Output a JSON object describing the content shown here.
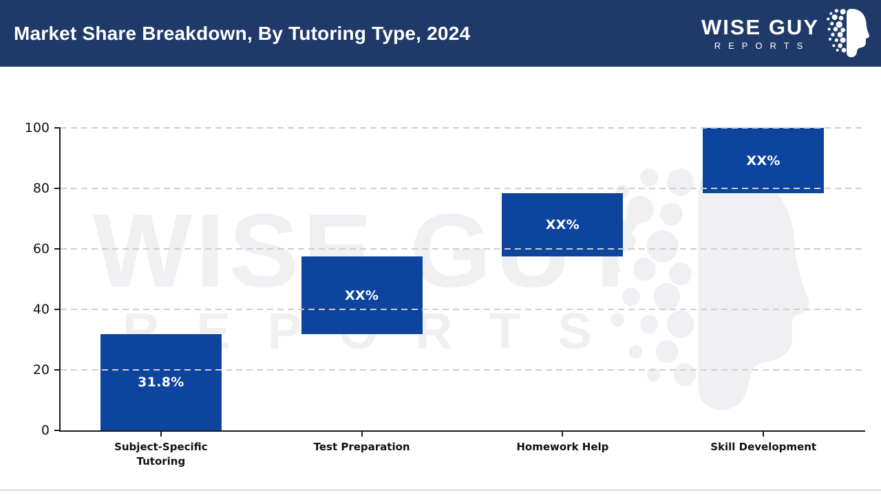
{
  "header": {
    "title": "Market Share Breakdown, By Tutoring Type, 2024",
    "bg_color": "#1f3a68",
    "logo": {
      "wordmark": "WISE GUY",
      "subtext": "REPORTS"
    }
  },
  "watermark": {
    "line1": "WISE GUY",
    "line2": "REPORTS"
  },
  "chart_data": {
    "type": "bar",
    "subtype": "waterfall",
    "title": "Market Share Breakdown, By Tutoring Type, 2024",
    "categories": [
      "Subject-Specific Tutoring",
      "Test Preparation",
      "Homework Help",
      "Skill Development"
    ],
    "segments": [
      {
        "category": "Subject-Specific Tutoring",
        "start": 0,
        "end": 31.8,
        "label": "31.8%"
      },
      {
        "category": "Test Preparation",
        "start": 31.8,
        "end": 57.5,
        "label": "XX%"
      },
      {
        "category": "Homework Help",
        "start": 57.5,
        "end": 78.4,
        "label": "XX%"
      },
      {
        "category": "Skill Development",
        "start": 78.4,
        "end": 100,
        "label": "XX%"
      }
    ],
    "yticks": [
      0,
      20,
      40,
      60,
      80,
      100
    ],
    "ylim": [
      0,
      100
    ],
    "xlabel": "",
    "ylabel": "",
    "bar_color": "#0d449d",
    "grid": true,
    "grid_style": "dashed",
    "legend": false
  }
}
